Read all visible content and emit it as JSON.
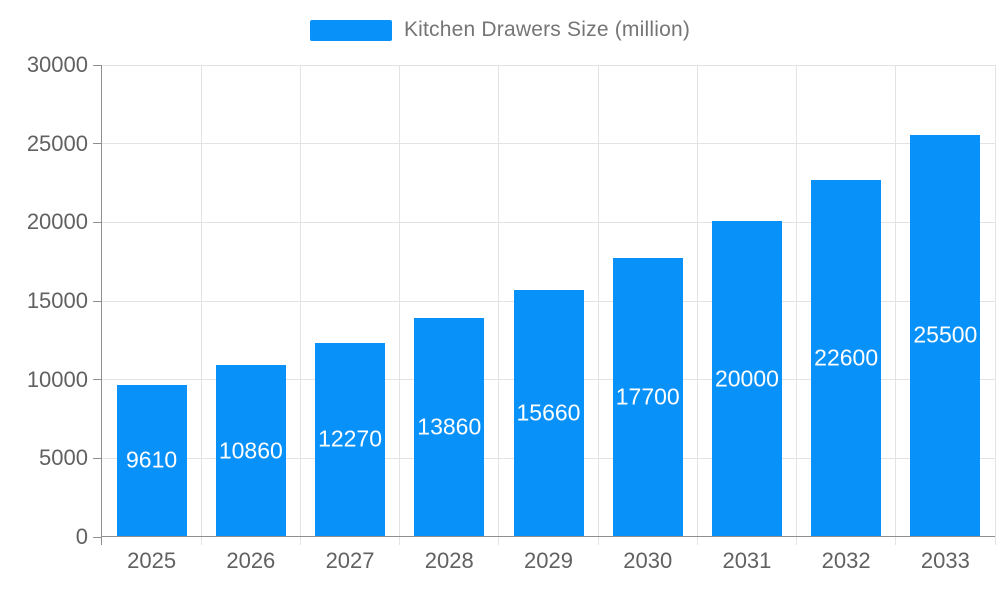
{
  "chart_data": {
    "type": "bar",
    "title": "",
    "legend": {
      "label": "Kitchen Drawers Size (million)",
      "position": "top-center"
    },
    "categories": [
      "2025",
      "2026",
      "2027",
      "2028",
      "2029",
      "2030",
      "2031",
      "2032",
      "2033"
    ],
    "values": [
      9610,
      10860,
      12270,
      13860,
      15660,
      17700,
      20000,
      22600,
      25500
    ],
    "bar_labels": [
      "9610",
      "10860",
      "12270",
      "13860",
      "15660",
      "17700",
      "20000",
      "22600",
      "25500"
    ],
    "xlabel": "",
    "ylabel": "",
    "ylim": [
      0,
      30000
    ],
    "ytick_interval": 5000,
    "ytick_labels": [
      "0",
      "5000",
      "10000",
      "15000",
      "20000",
      "25000",
      "30000"
    ],
    "grid": "horizontal-and-vertical",
    "colors": {
      "bar": "#0991fa",
      "bar_label_text": "#ffffff",
      "axis_line": "#8f8f8f",
      "gridline": "#e3e3e3",
      "tick_label_text": "#616161",
      "legend_text": "#757575",
      "background": "#ffffff"
    }
  }
}
